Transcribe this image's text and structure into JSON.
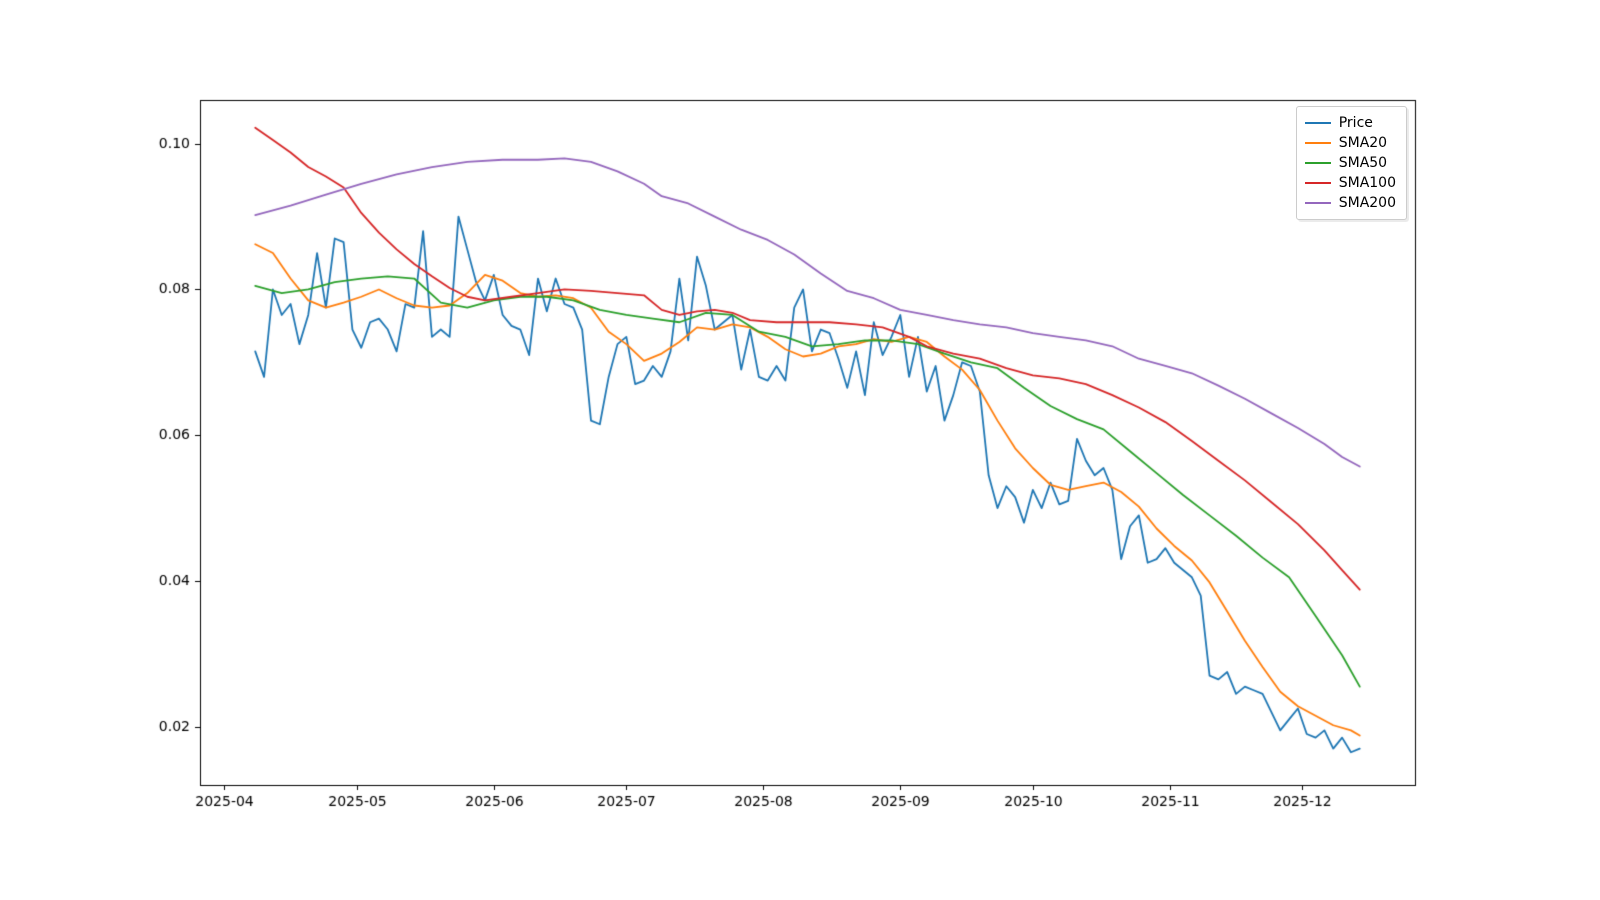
{
  "chart_data": {
    "type": "line",
    "title": "",
    "xlabel": "",
    "ylabel": "",
    "x_unit": "days since 2025-04-08",
    "xlim": [
      -12.5,
      262.5
    ],
    "ylim": [
      0.012,
      0.106
    ],
    "grid": false,
    "legend_position": "upper right",
    "x_ticks": [
      {
        "day": -7,
        "label": "2025-04"
      },
      {
        "day": 23,
        "label": "2025-05"
      },
      {
        "day": 54,
        "label": "2025-06"
      },
      {
        "day": 84,
        "label": "2025-07"
      },
      {
        "day": 115,
        "label": "2025-08"
      },
      {
        "day": 146,
        "label": "2025-09"
      },
      {
        "day": 176,
        "label": "2025-10"
      },
      {
        "day": 207,
        "label": "2025-11"
      },
      {
        "day": 237,
        "label": "2025-12"
      }
    ],
    "y_ticks": [
      {
        "value": 0.02,
        "label": "0.02"
      },
      {
        "value": 0.04,
        "label": "0.04"
      },
      {
        "value": 0.06,
        "label": "0.06"
      },
      {
        "value": 0.08,
        "label": "0.08"
      },
      {
        "value": 0.1,
        "label": "0.10"
      }
    ],
    "series": [
      {
        "name": "Price",
        "color": "#1f77b4",
        "x_start": 0,
        "x_step": 2,
        "values": [
          0.0715,
          0.068,
          0.08,
          0.0765,
          0.078,
          0.0725,
          0.0765,
          0.085,
          0.0775,
          0.087,
          0.0865,
          0.0745,
          0.072,
          0.0755,
          0.076,
          0.0745,
          0.0715,
          0.078,
          0.0775,
          0.088,
          0.0735,
          0.0745,
          0.0735,
          0.09,
          0.0855,
          0.081,
          0.0785,
          0.082,
          0.0765,
          0.075,
          0.0745,
          0.071,
          0.0815,
          0.077,
          0.0815,
          0.078,
          0.0775,
          0.0745,
          0.062,
          0.0615,
          0.068,
          0.0725,
          0.0735,
          0.067,
          0.0675,
          0.0695,
          0.068,
          0.0715,
          0.0815,
          0.073,
          0.0845,
          0.0805,
          0.0745,
          0.0755,
          0.0765,
          0.069,
          0.0745,
          0.068,
          0.0675,
          0.0695,
          0.0675,
          0.0775,
          0.08,
          0.0715,
          0.0745,
          0.074,
          0.0705,
          0.0665,
          0.0715,
          0.0655,
          0.0755,
          0.071,
          0.0735,
          0.0765,
          0.068,
          0.0735,
          0.066,
          0.0695,
          0.062,
          0.0655,
          0.07,
          0.0695,
          0.066,
          0.0545,
          0.05,
          0.053,
          0.0515,
          0.048,
          0.0525,
          0.05,
          0.0535,
          0.0505,
          0.051,
          0.0595,
          0.0565,
          0.0545,
          0.0555,
          0.0525,
          0.043,
          0.0475,
          0.049,
          0.0425,
          0.043,
          0.0445,
          0.0425,
          0.0415,
          0.0405,
          0.038,
          0.027,
          0.0265,
          0.0275,
          0.0245,
          0.0255,
          0.025,
          0.0245,
          0.022,
          0.0195,
          0.021,
          0.0225,
          0.019,
          0.0185,
          0.0195,
          0.017,
          0.0185,
          0.0165,
          0.017
        ]
      },
      {
        "name": "SMA20",
        "color": "#ff7f0e",
        "points": [
          [
            0,
            0.0862
          ],
          [
            4,
            0.085
          ],
          [
            8,
            0.0815
          ],
          [
            12,
            0.0785
          ],
          [
            16,
            0.0775
          ],
          [
            20,
            0.0782
          ],
          [
            24,
            0.079
          ],
          [
            28,
            0.08
          ],
          [
            32,
            0.0788
          ],
          [
            36,
            0.0778
          ],
          [
            40,
            0.0775
          ],
          [
            44,
            0.0778
          ],
          [
            48,
            0.0795
          ],
          [
            52,
            0.082
          ],
          [
            56,
            0.0812
          ],
          [
            60,
            0.0795
          ],
          [
            64,
            0.079
          ],
          [
            68,
            0.0792
          ],
          [
            72,
            0.0788
          ],
          [
            76,
            0.0775
          ],
          [
            80,
            0.0742
          ],
          [
            84,
            0.0725
          ],
          [
            88,
            0.0702
          ],
          [
            92,
            0.0712
          ],
          [
            96,
            0.0728
          ],
          [
            100,
            0.0748
          ],
          [
            104,
            0.0745
          ],
          [
            108,
            0.0752
          ],
          [
            112,
            0.0748
          ],
          [
            116,
            0.0735
          ],
          [
            120,
            0.0718
          ],
          [
            124,
            0.0708
          ],
          [
            128,
            0.0712
          ],
          [
            132,
            0.0722
          ],
          [
            136,
            0.0725
          ],
          [
            140,
            0.0732
          ],
          [
            144,
            0.0728
          ],
          [
            148,
            0.0735
          ],
          [
            152,
            0.0728
          ],
          [
            156,
            0.0708
          ],
          [
            160,
            0.069
          ],
          [
            164,
            0.0662
          ],
          [
            168,
            0.062
          ],
          [
            172,
            0.0582
          ],
          [
            176,
            0.0555
          ],
          [
            180,
            0.0532
          ],
          [
            184,
            0.0525
          ],
          [
            188,
            0.053
          ],
          [
            192,
            0.0535
          ],
          [
            196,
            0.0522
          ],
          [
            200,
            0.0502
          ],
          [
            204,
            0.0472
          ],
          [
            208,
            0.0448
          ],
          [
            212,
            0.0428
          ],
          [
            216,
            0.0398
          ],
          [
            220,
            0.0358
          ],
          [
            224,
            0.0318
          ],
          [
            228,
            0.0282
          ],
          [
            232,
            0.0248
          ],
          [
            236,
            0.0228
          ],
          [
            240,
            0.0215
          ],
          [
            244,
            0.0202
          ],
          [
            248,
            0.0195
          ],
          [
            250,
            0.0188
          ]
        ]
      },
      {
        "name": "SMA50",
        "color": "#2ca02c",
        "points": [
          [
            0,
            0.0805
          ],
          [
            6,
            0.0795
          ],
          [
            12,
            0.08
          ],
          [
            18,
            0.081
          ],
          [
            24,
            0.0815
          ],
          [
            30,
            0.0818
          ],
          [
            36,
            0.0815
          ],
          [
            42,
            0.0782
          ],
          [
            48,
            0.0775
          ],
          [
            54,
            0.0785
          ],
          [
            60,
            0.079
          ],
          [
            66,
            0.079
          ],
          [
            72,
            0.0785
          ],
          [
            78,
            0.0772
          ],
          [
            84,
            0.0765
          ],
          [
            90,
            0.076
          ],
          [
            96,
            0.0755
          ],
          [
            102,
            0.0768
          ],
          [
            108,
            0.0765
          ],
          [
            114,
            0.0742
          ],
          [
            120,
            0.0735
          ],
          [
            126,
            0.0722
          ],
          [
            132,
            0.0725
          ],
          [
            138,
            0.073
          ],
          [
            144,
            0.073
          ],
          [
            150,
            0.0725
          ],
          [
            156,
            0.0712
          ],
          [
            162,
            0.07
          ],
          [
            168,
            0.0692
          ],
          [
            174,
            0.0665
          ],
          [
            180,
            0.064
          ],
          [
            186,
            0.0622
          ],
          [
            192,
            0.0608
          ],
          [
            198,
            0.0578
          ],
          [
            204,
            0.0548
          ],
          [
            210,
            0.0518
          ],
          [
            216,
            0.049
          ],
          [
            222,
            0.0462
          ],
          [
            228,
            0.0432
          ],
          [
            234,
            0.0405
          ],
          [
            240,
            0.0352
          ],
          [
            246,
            0.0298
          ],
          [
            250,
            0.0255
          ]
        ]
      },
      {
        "name": "SMA100",
        "color": "#d62728",
        "points": [
          [
            0,
            0.1022
          ],
          [
            4,
            0.1005
          ],
          [
            8,
            0.0988
          ],
          [
            12,
            0.0968
          ],
          [
            16,
            0.0955
          ],
          [
            20,
            0.094
          ],
          [
            24,
            0.0905
          ],
          [
            28,
            0.0878
          ],
          [
            32,
            0.0855
          ],
          [
            36,
            0.0835
          ],
          [
            40,
            0.0818
          ],
          [
            44,
            0.0802
          ],
          [
            48,
            0.079
          ],
          [
            52,
            0.0785
          ],
          [
            58,
            0.079
          ],
          [
            64,
            0.0795
          ],
          [
            70,
            0.08
          ],
          [
            76,
            0.0798
          ],
          [
            82,
            0.0795
          ],
          [
            88,
            0.0792
          ],
          [
            92,
            0.0772
          ],
          [
            96,
            0.0765
          ],
          [
            100,
            0.077
          ],
          [
            104,
            0.0772
          ],
          [
            108,
            0.0768
          ],
          [
            112,
            0.0758
          ],
          [
            118,
            0.0755
          ],
          [
            124,
            0.0755
          ],
          [
            130,
            0.0755
          ],
          [
            136,
            0.0752
          ],
          [
            142,
            0.0748
          ],
          [
            148,
            0.0735
          ],
          [
            152,
            0.0722
          ],
          [
            158,
            0.0712
          ],
          [
            164,
            0.0705
          ],
          [
            170,
            0.0692
          ],
          [
            176,
            0.0682
          ],
          [
            182,
            0.0678
          ],
          [
            188,
            0.067
          ],
          [
            194,
            0.0655
          ],
          [
            200,
            0.0638
          ],
          [
            206,
            0.0618
          ],
          [
            212,
            0.0592
          ],
          [
            218,
            0.0565
          ],
          [
            224,
            0.0538
          ],
          [
            230,
            0.0508
          ],
          [
            236,
            0.0478
          ],
          [
            242,
            0.0442
          ],
          [
            246,
            0.0415
          ],
          [
            250,
            0.0388
          ]
        ]
      },
      {
        "name": "SMA200",
        "color": "#9467bd",
        "points": [
          [
            0,
            0.0902
          ],
          [
            8,
            0.0915
          ],
          [
            16,
            0.093
          ],
          [
            24,
            0.0945
          ],
          [
            32,
            0.0958
          ],
          [
            40,
            0.0968
          ],
          [
            48,
            0.0975
          ],
          [
            56,
            0.0978
          ],
          [
            64,
            0.0978
          ],
          [
            70,
            0.098
          ],
          [
            76,
            0.0975
          ],
          [
            82,
            0.0962
          ],
          [
            88,
            0.0945
          ],
          [
            92,
            0.0928
          ],
          [
            98,
            0.0918
          ],
          [
            104,
            0.09
          ],
          [
            110,
            0.0882
          ],
          [
            116,
            0.0868
          ],
          [
            122,
            0.0848
          ],
          [
            128,
            0.0822
          ],
          [
            134,
            0.0798
          ],
          [
            140,
            0.0788
          ],
          [
            146,
            0.0772
          ],
          [
            152,
            0.0765
          ],
          [
            158,
            0.0758
          ],
          [
            164,
            0.0752
          ],
          [
            170,
            0.0748
          ],
          [
            176,
            0.074
          ],
          [
            182,
            0.0735
          ],
          [
            188,
            0.073
          ],
          [
            194,
            0.0722
          ],
          [
            200,
            0.0705
          ],
          [
            206,
            0.0695
          ],
          [
            212,
            0.0685
          ],
          [
            218,
            0.0668
          ],
          [
            224,
            0.065
          ],
          [
            230,
            0.063
          ],
          [
            236,
            0.061
          ],
          [
            242,
            0.0588
          ],
          [
            246,
            0.057
          ],
          [
            250,
            0.0557
          ]
        ]
      }
    ]
  }
}
